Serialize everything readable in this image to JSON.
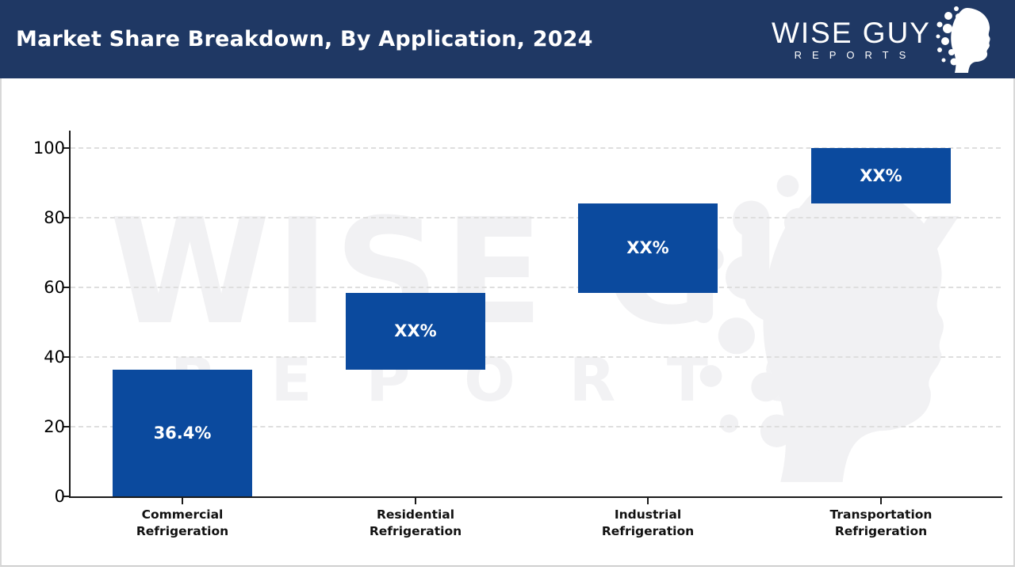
{
  "header": {
    "title": "Market Share Breakdown, By Application, 2024",
    "logo": {
      "line1": "WISE GUY",
      "line2": "REPORTS"
    }
  },
  "watermark": {
    "line1": "WISE GUY",
    "line2": "REPORTS"
  },
  "chart_data": {
    "type": "bar",
    "subtype": "waterfall-floating-bars",
    "title": "Market Share Breakdown, By Application, 2024",
    "categories": [
      "Commercial\nRefrigeration",
      "Residential\nRefrigeration",
      "Industrial\nRefrigeration",
      "Transportation\nRefrigeration"
    ],
    "bars": [
      {
        "category": "Commercial Refrigeration",
        "start": 0,
        "end": 36.4,
        "label": "36.4%"
      },
      {
        "category": "Residential Refrigeration",
        "start": 36.4,
        "end": 58.5,
        "label": "XX%"
      },
      {
        "category": "Industrial Refrigeration",
        "start": 58.5,
        "end": 84.0,
        "label": "XX%"
      },
      {
        "category": "Transportation Refrigeration",
        "start": 84.0,
        "end": 100,
        "label": "XX%"
      }
    ],
    "yticks": [
      0,
      20,
      40,
      60,
      80,
      100
    ],
    "ylim": [
      0,
      105
    ],
    "xlabel": "",
    "ylabel": "",
    "grid": "horizontal-dashed",
    "legend": "none",
    "bar_color": "#0b4a9e",
    "bar_label_color": "#ffffff"
  },
  "colors": {
    "header_bg": "#1f3864",
    "bar": "#0b4a9e",
    "watermark": "#f1f1f3",
    "grid": "#dedede",
    "axis": "#1a1a1a",
    "card_border": "#d8d8d8"
  }
}
